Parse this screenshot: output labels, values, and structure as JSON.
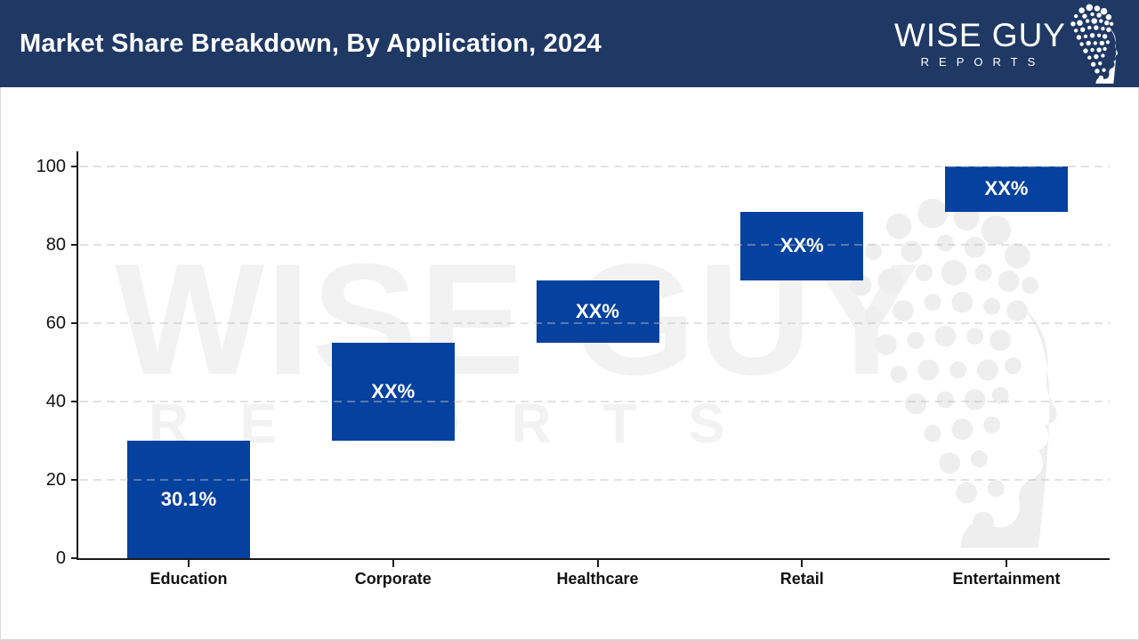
{
  "header": {
    "title": "Market Share Breakdown, By Application, 2024",
    "background": "#1f3864",
    "logo": {
      "line1": "WISE GUY",
      "line2": "REPORTS"
    }
  },
  "watermark": {
    "line1": "WISE GUY",
    "line2": "REPORTS"
  },
  "chart_data": {
    "type": "bar",
    "variant": "waterfall",
    "title": "Market Share Breakdown, By Application, 2024",
    "categories": [
      "Education",
      "Corporate",
      "Healthcare",
      "Retail",
      "Entertainment"
    ],
    "segments": [
      {
        "category": "Education",
        "start": 0,
        "end": 30.1,
        "label": "30.1%"
      },
      {
        "category": "Corporate",
        "start": 30.1,
        "end": 55,
        "label": "XX%"
      },
      {
        "category": "Healthcare",
        "start": 55,
        "end": 71,
        "label": "XX%"
      },
      {
        "category": "Retail",
        "start": 71,
        "end": 88.5,
        "label": "XX%"
      },
      {
        "category": "Entertainment",
        "start": 88.5,
        "end": 100,
        "label": "XX%"
      }
    ],
    "xlabel": "",
    "ylabel": "",
    "ylim": [
      0,
      107
    ],
    "yticks": [
      0,
      20,
      40,
      60,
      80,
      100
    ],
    "grid": {
      "axis": "y",
      "style": "dashed",
      "drawn_on_top_of_bars": true
    },
    "legend": null,
    "bar_color": "#05419e",
    "bar_label_color": "#ffffff",
    "axis_color": "#1a1a1a"
  }
}
